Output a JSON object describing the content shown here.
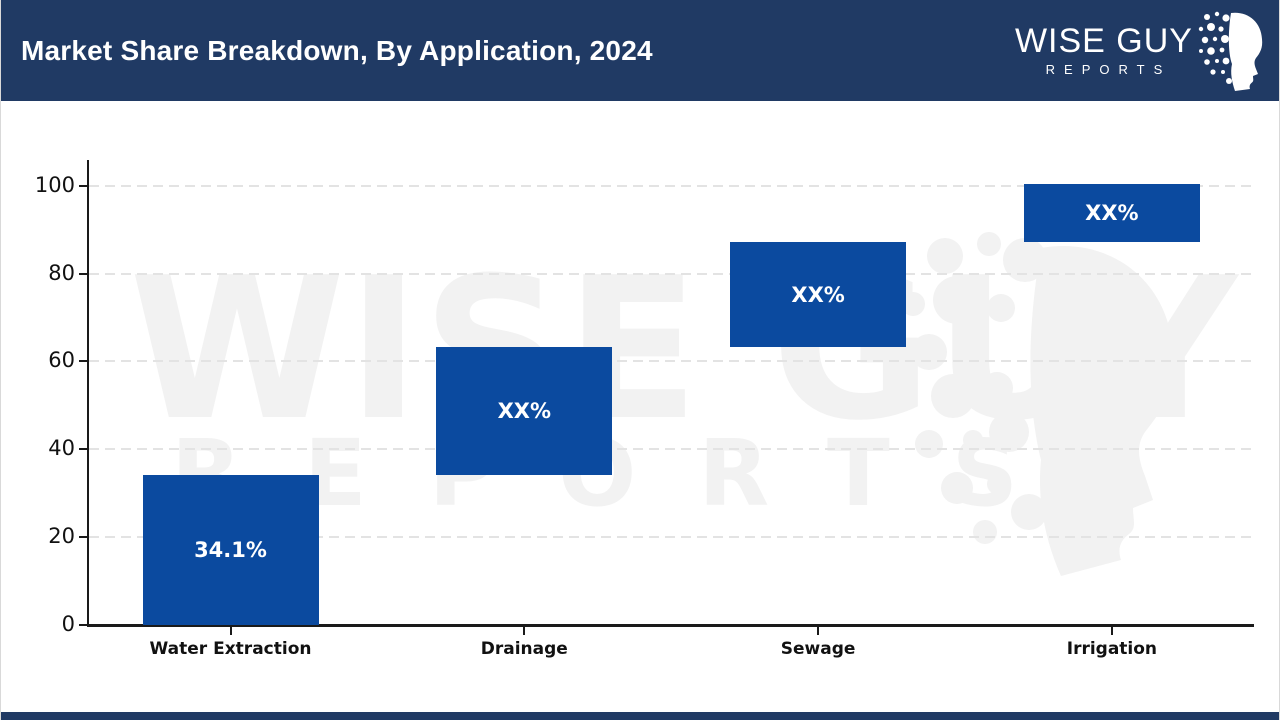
{
  "header": {
    "title": "Market Share Breakdown, By Application, 2024",
    "logo": {
      "line1": "WISE GUY",
      "line2": "REPORTS"
    }
  },
  "watermark": {
    "line1": "WISE GUY",
    "line2": "REPORTS"
  },
  "colors": {
    "header_bg": "#203A64",
    "footer_bg": "#203A64",
    "bar": "#0B4A9F",
    "axis": "#1a1a1a",
    "gridline": "#e3e3e3",
    "watermark": "#f2f2f2"
  },
  "chart_data": {
    "type": "bar",
    "subtype": "waterfall",
    "title": "Market Share Breakdown, By Application, 2024",
    "categories": [
      "Water Extraction",
      "Drainage",
      "Sewage",
      "Irrigation"
    ],
    "segments": [
      {
        "category": "Water Extraction",
        "start": 0,
        "end": 34.1,
        "label": "34.1%"
      },
      {
        "category": "Drainage",
        "start": 34.1,
        "end": 63.2,
        "label": "XX%"
      },
      {
        "category": "Sewage",
        "start": 63.2,
        "end": 87.1,
        "label": "XX%"
      },
      {
        "category": "Irrigation",
        "start": 87.1,
        "end": 100.3,
        "label": "XX%"
      }
    ],
    "xlabel": "",
    "ylabel": "",
    "yticks": [
      0,
      20,
      40,
      60,
      80,
      100
    ],
    "ylim": [
      0,
      106
    ],
    "grid": "dashed-horizontal",
    "legend": "none"
  }
}
